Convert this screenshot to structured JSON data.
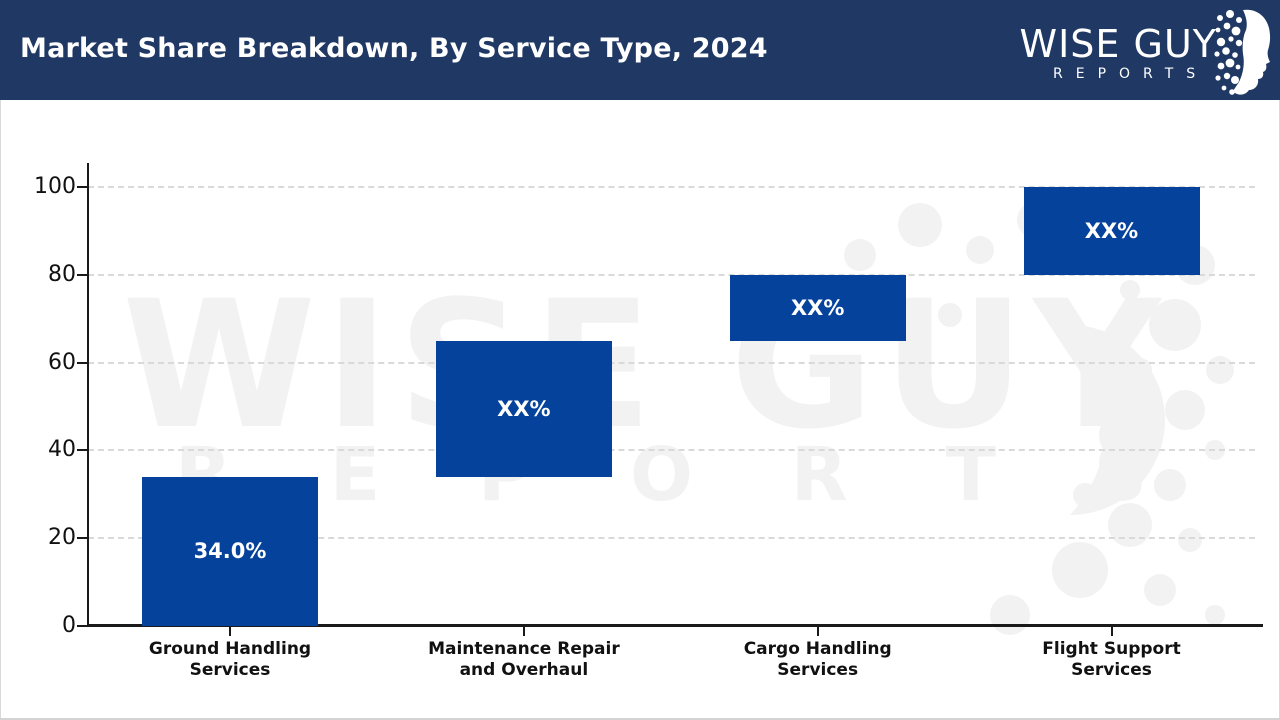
{
  "header": {
    "title": "Market Share Breakdown, By Service Type, 2024",
    "logo": {
      "wordmark": "WISE GUY",
      "subtext": "REPORTS"
    }
  },
  "watermark": {
    "line1": "WISE GUY",
    "line2": "R E P O R T S"
  },
  "colors": {
    "header_bg": "#1f3864",
    "bar": "#04429c",
    "bar_label": "#ffffff",
    "grid": "#d9d9d9",
    "axis": "#1a1a1a",
    "watermark": "#f2f2f2"
  },
  "chart_data": {
    "type": "bar",
    "subtype": "floating-waterfall",
    "title": "Market Share Breakdown, By Service Type, 2024",
    "categories": [
      "Ground Handling Services",
      "Maintenance Repair and Overhaul",
      "Cargo Handling Services",
      "Flight Support Services"
    ],
    "category_lines": [
      [
        "Ground Handling",
        "Services"
      ],
      [
        "Maintenance Repair",
        "and Overhaul"
      ],
      [
        "Cargo Handling",
        "Services"
      ],
      [
        "Flight Support",
        "Services"
      ]
    ],
    "segments": [
      {
        "from": 0,
        "to": 34
      },
      {
        "from": 34,
        "to": 65
      },
      {
        "from": 65,
        "to": 80
      },
      {
        "from": 80,
        "to": 100
      }
    ],
    "values": [
      34,
      31,
      15,
      20
    ],
    "bar_labels": [
      "34.0%",
      "XX%",
      "XX%",
      "XX%"
    ],
    "xlabel": "",
    "ylabel": "",
    "ylim": [
      0,
      100
    ],
    "yticks": [
      0,
      20,
      40,
      60,
      80,
      100
    ],
    "grid": "horizontal-dashed",
    "legend": null
  }
}
